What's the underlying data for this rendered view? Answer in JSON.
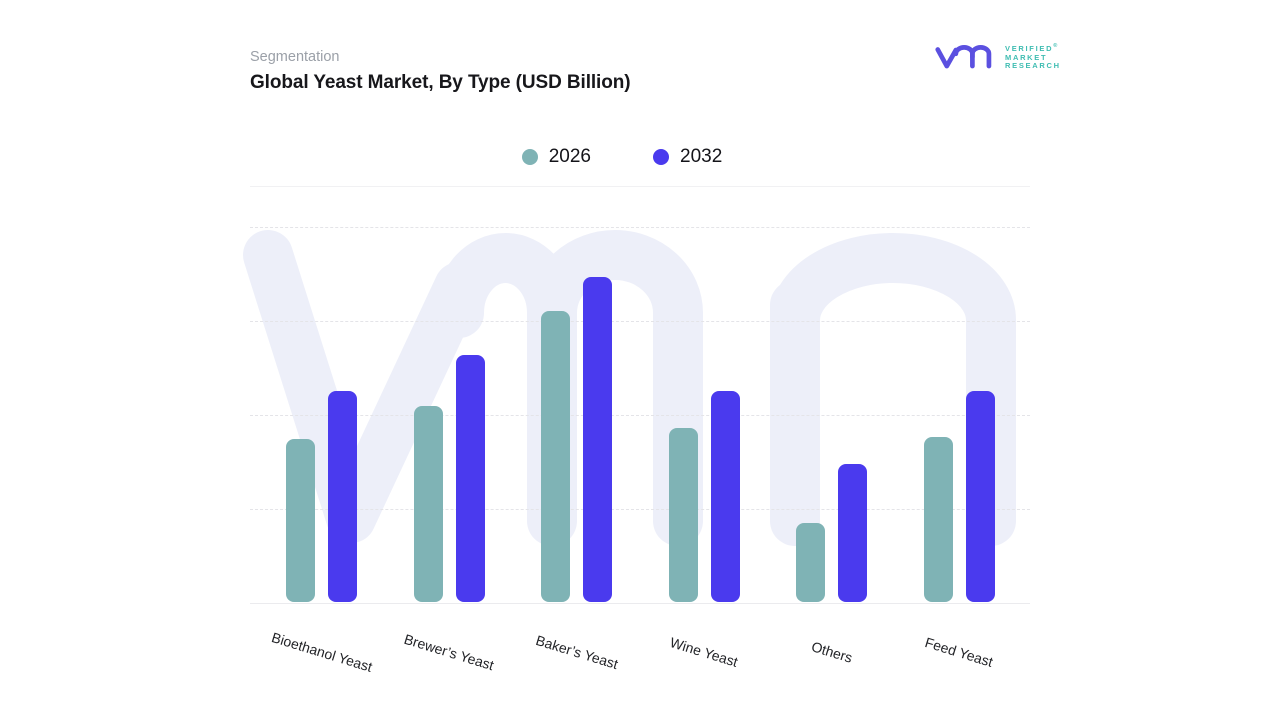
{
  "header": {
    "eyebrow": "Segmentation",
    "title": "Global Yeast Market, By Type (USD Billion)"
  },
  "brand": {
    "glyph": "vmr-monogram",
    "glyph_color": "#5b50e0",
    "text_color": "#3fbdb2",
    "name_lines": [
      "VERIFIED",
      "MARKET",
      "RESEARCH"
    ],
    "registered": "®"
  },
  "legend": {
    "items": [
      {
        "label": "2026",
        "color": "#7fb3b5"
      },
      {
        "label": "2032",
        "color": "#4a3aee"
      }
    ]
  },
  "chart_data": {
    "type": "bar",
    "title": "Global Yeast Market, By Type (USD Billion)",
    "unit": "USD Billion",
    "categories": [
      "Bioethanol Yeast",
      "Brewer’s Yeast",
      "Baker’s Yeast",
      "Wine Yeast",
      "Others",
      "Feed Yeast"
    ],
    "series": [
      {
        "name": "2026",
        "color": "#7fb3b5",
        "values": [
          1.73,
          2.09,
          3.1,
          1.85,
          0.84,
          1.76
        ]
      },
      {
        "name": "2032",
        "color": "#4a3aee",
        "values": [
          2.24,
          2.63,
          3.46,
          2.24,
          1.47,
          2.24
        ]
      }
    ],
    "xlabel": "",
    "ylabel": "",
    "y_axis": {
      "min": 0,
      "max": 4,
      "gridline_step": 1,
      "tick_labels_visible": false
    },
    "grid": "horizontal-dashed",
    "legend_position": "top-center",
    "x_label_rotation_deg": 17
  },
  "watermark": {
    "name": "vmr-watermark",
    "color": "#edeff9"
  },
  "colors": {
    "grid": "#e4e4e8",
    "baseline": "#ebebee",
    "divider": "#f1f1f3",
    "title_text": "#17171b",
    "eyebrow_text": "#9ba0a8",
    "axis_label_text": "#222327"
  }
}
